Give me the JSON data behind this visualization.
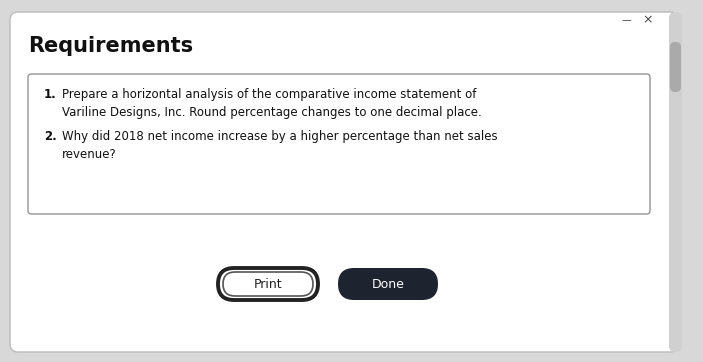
{
  "title": "Requirements",
  "item1_line1": "Prepare a horizontal analysis of the comparative income statement of",
  "item1_line2": "Variline Designs, Inc. Round percentage changes to one decimal place.",
  "item2_line1": "Why did 2018 net income increase by a higher percentage than net sales",
  "item2_line2": "revenue?",
  "print_label": "Print",
  "done_label": "Done",
  "bg_color": "#ffffff",
  "window_bg": "#d8d8d8",
  "title_fontsize": 15,
  "body_fontsize": 8.5,
  "button_fontsize": 9,
  "done_btn_bg": "#1e2330",
  "done_btn_fg": "#ffffff",
  "print_btn_fg": "#222222",
  "title_color": "#111111",
  "text_color": "#111111"
}
